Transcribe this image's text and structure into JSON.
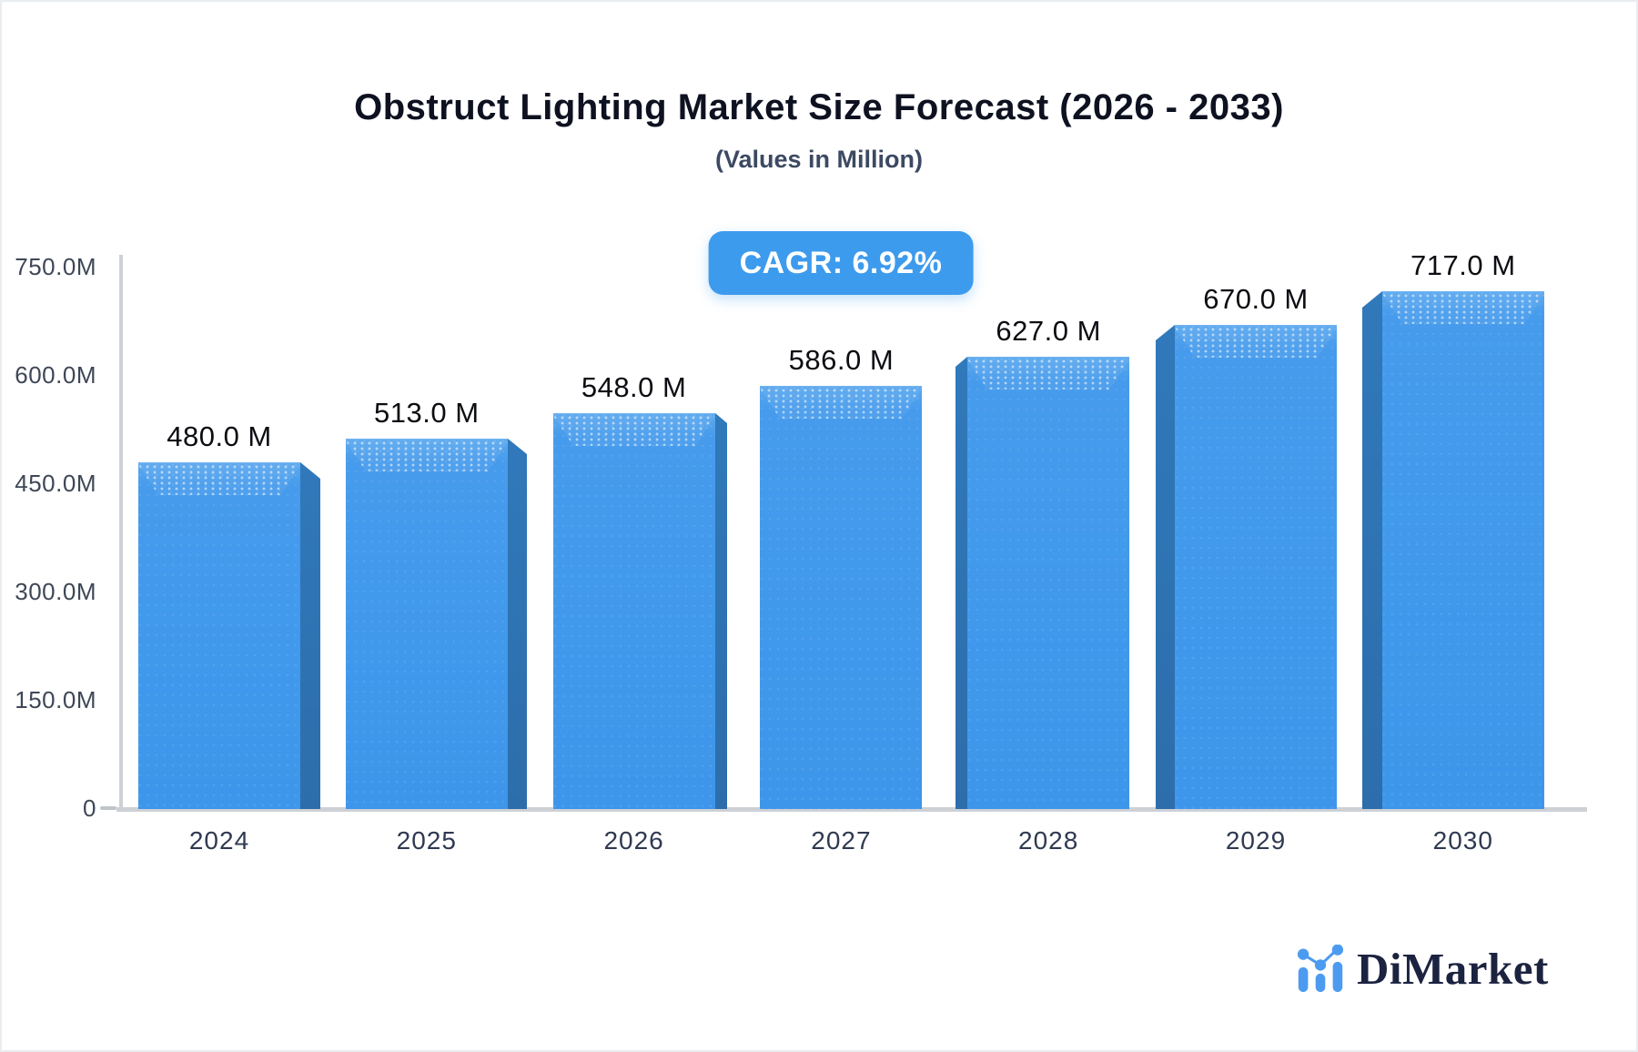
{
  "title": "Obstruct Lighting Market Size Forecast (2026 - 2033)",
  "subtitle": "(Values in Million)",
  "badge": {
    "label": "CAGR: 6.92%"
  },
  "logo": {
    "text": "DiMarket",
    "icon": "bar-line-chart-icon"
  },
  "colors": {
    "accent": "#3d9bed",
    "bar_face": "#4199ec",
    "bar_side": "#2d6dab",
    "axis": "#cdd1d6",
    "title_text": "#0d1120",
    "subtitle_text": "#3c4962",
    "badge_bg": "#3d9bed",
    "badge_text": "#ffffff",
    "logo_blue": "#4d9bf0",
    "logo_text": "#1b2340"
  },
  "chart_data": {
    "type": "bar",
    "title": "Obstruct Lighting Market Size Forecast (2026 - 2033)",
    "subtitle": "(Values in Million)",
    "categories": [
      "2024",
      "2025",
      "2026",
      "2027",
      "2028",
      "2029",
      "2030"
    ],
    "values": [
      480,
      513,
      548,
      586,
      627,
      670,
      717
    ],
    "value_labels": [
      "480.0 M",
      "513.0 M",
      "548.0 M",
      "586.0 M",
      "627.0 M",
      "670.0 M",
      "717.0 M"
    ],
    "unit_suffix": "M",
    "xlabel": "",
    "ylabel": "",
    "ylim": [
      0,
      750
    ],
    "y_ticks": [
      {
        "value": 750,
        "label": "750.0M"
      },
      {
        "value": 600,
        "label": "600.0M"
      },
      {
        "value": 450,
        "label": "450.0M"
      },
      {
        "value": 300,
        "label": "300.0M"
      },
      {
        "value": 150,
        "label": "150.0M"
      },
      {
        "value": 0,
        "label": "0"
      }
    ],
    "grid": false,
    "legend": "none",
    "style_3d": true,
    "annotation": "CAGR: 6.92%"
  }
}
